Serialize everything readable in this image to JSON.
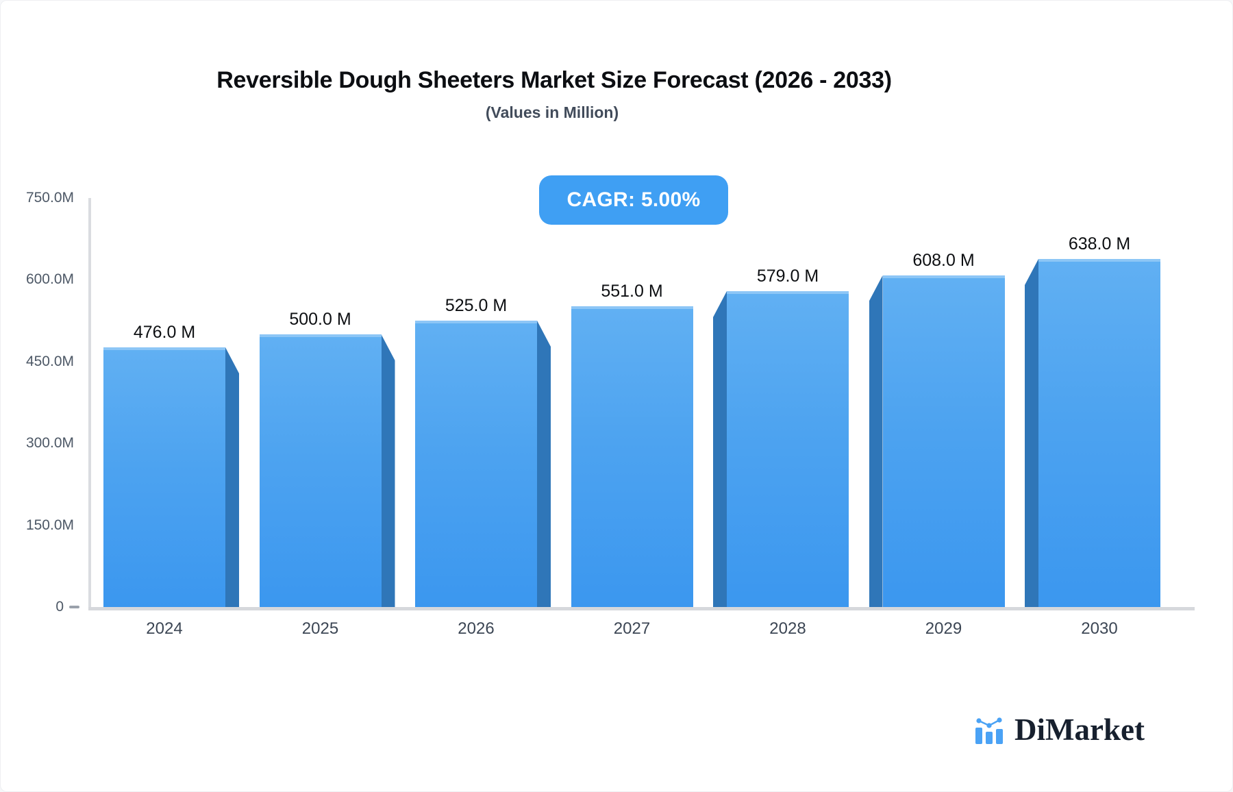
{
  "header": {
    "title": "Reversible Dough Sheeters Market Size Forecast (2026 - 2033)",
    "subtitle": "(Values in Million)",
    "cagr_label": "CAGR: 5.00%"
  },
  "chart_data": {
    "type": "bar",
    "title": "Reversible Dough Sheeters Market Size Forecast (2026 - 2033)",
    "subtitle": "(Values in Million)",
    "cagr_percent": "5.00%",
    "categories": [
      "2024",
      "2025",
      "2026",
      "2027",
      "2028",
      "2029",
      "2030"
    ],
    "values": [
      476,
      500,
      525,
      551,
      579,
      608,
      638
    ],
    "value_labels": [
      "476.0 M",
      "500.0 M",
      "525.0 M",
      "551.0 M",
      "579.0 M",
      "608.0 M",
      "638.0 M"
    ],
    "unit": "Million",
    "xlabel": "",
    "ylabel": "",
    "ylim": [
      0,
      750
    ],
    "y_ticks": [
      {
        "value": 750,
        "label": "750.0M"
      },
      {
        "value": 600,
        "label": "600.0M"
      },
      {
        "value": 450,
        "label": "450.0M"
      },
      {
        "value": 300,
        "label": "300.0M"
      },
      {
        "value": 150,
        "label": "150.0M"
      },
      {
        "value": 0,
        "label": "0"
      }
    ],
    "grid": false,
    "legend": "none",
    "style": "3d-perspective-bars",
    "colors": {
      "bar_face_top": "#61b0f3",
      "bar_face_bottom": "#3b97ef",
      "bar_side": "#2f76b8",
      "badge_background": "#3f9ff3",
      "badge_text": "#ffffff",
      "axis_line": "#d8dade",
      "tick_text": "#4d5866",
      "value_text": "#0d0f12",
      "title_text": "#0c0e12"
    }
  },
  "footer": {
    "brand": "DiMarket",
    "logo_color": "#4aa2f5",
    "brand_text_color": "#17202e"
  }
}
